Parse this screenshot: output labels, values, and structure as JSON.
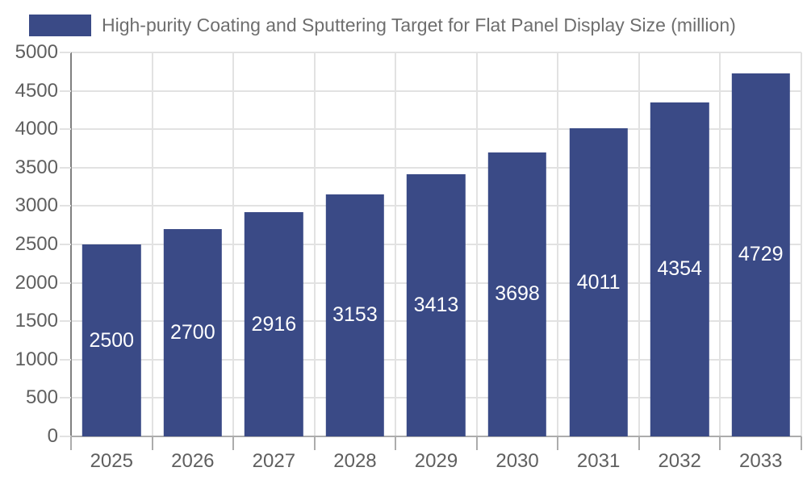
{
  "chart_data": {
    "type": "bar",
    "title": "High-purity Coating and Sputtering Target for Flat Panel Display Size (million)",
    "categories": [
      "2025",
      "2026",
      "2027",
      "2028",
      "2029",
      "2030",
      "2031",
      "2032",
      "2033"
    ],
    "values": [
      2500,
      2700,
      2916,
      3153,
      3413,
      3698,
      4011,
      4354,
      4729
    ],
    "xlabel": "",
    "ylabel": "",
    "ylim": [
      0,
      5000
    ],
    "ytick_step": 500,
    "grid": "both",
    "legend_position": "top-left",
    "value_label_position": "inside-center",
    "colors": {
      "bar": "#3A4A86",
      "grid": "#E2E2E2",
      "y_axis_line": "#808080",
      "x_axis_line": "#ACACAC",
      "tick_text": "#5F5F5F",
      "title_text": "#6E6E6E",
      "value_label_text": "#FFFFFF",
      "background": "#FFFFFF"
    }
  }
}
